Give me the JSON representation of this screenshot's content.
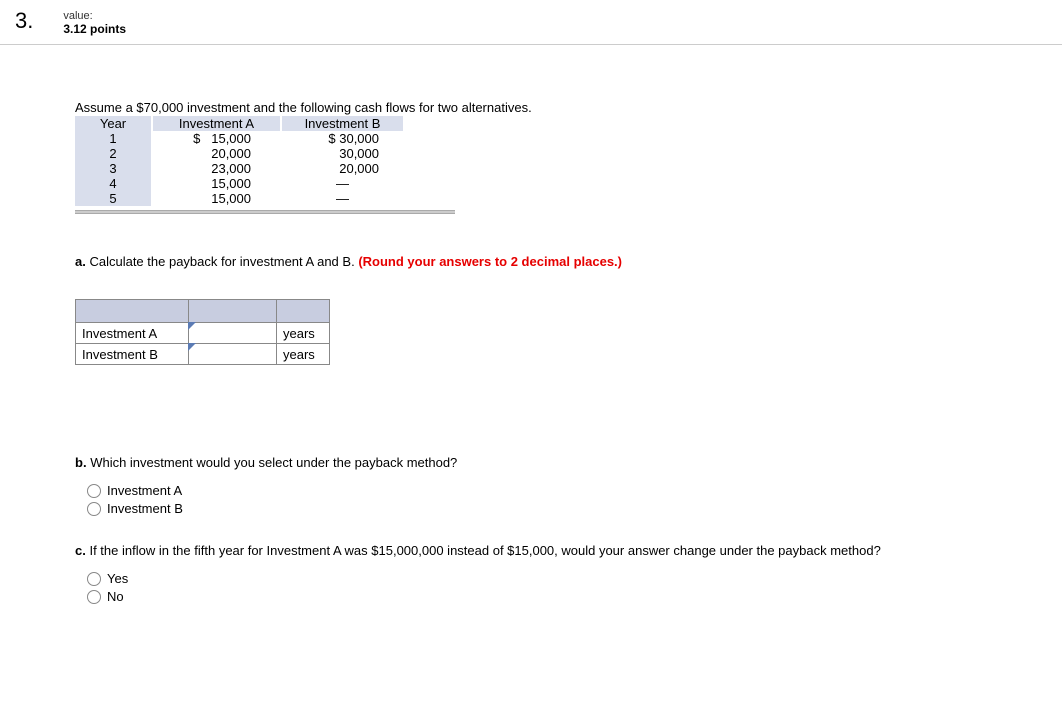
{
  "header": {
    "question_number": "3.",
    "value_label": "value:",
    "points": "3.12 points"
  },
  "intro": "Assume a $70,000 investment and the following cash flows for two alternatives.",
  "cashflow_table": {
    "headers": [
      "Year",
      "Investment A",
      "Investment B"
    ],
    "rows": [
      {
        "year": "1",
        "a_prefix": "$",
        "a": "15,000",
        "b_prefix": "$",
        "b": "30,000"
      },
      {
        "year": "2",
        "a_prefix": "",
        "a": "20,000",
        "b_prefix": "",
        "b": "30,000"
      },
      {
        "year": "3",
        "a_prefix": "",
        "a": "23,000",
        "b_prefix": "",
        "b": "20,000"
      },
      {
        "year": "4",
        "a_prefix": "",
        "a": "15,000",
        "b_prefix": "",
        "b": "—"
      },
      {
        "year": "5",
        "a_prefix": "",
        "a": "15,000",
        "b_prefix": "",
        "b": "—"
      }
    ]
  },
  "part_a": {
    "label": "a.",
    "text": "Calculate the payback for investment A and B.",
    "hint": "(Round your answers to 2 decimal places.)",
    "rows": [
      {
        "label": "Investment A",
        "unit": "years"
      },
      {
        "label": "Investment B",
        "unit": "years"
      }
    ]
  },
  "part_b": {
    "label": "b.",
    "text": "Which investment would you select under the payback method?",
    "options": [
      "Investment A",
      "Investment B"
    ]
  },
  "part_c": {
    "label": "c.",
    "text": "If the inflow in the fifth year for Investment A was $15,000,000 instead of $15,000, would your answer change under the payback method?",
    "options": [
      "Yes",
      "No"
    ]
  }
}
